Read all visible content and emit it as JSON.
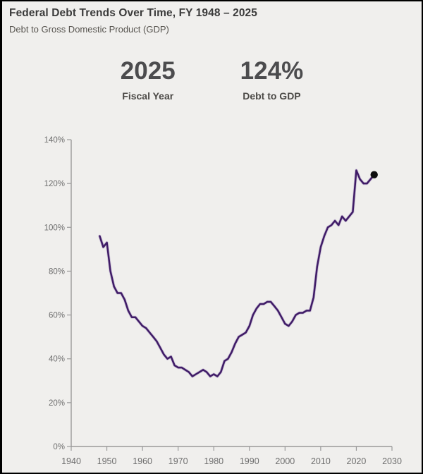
{
  "header": {
    "title": "Federal Debt Trends Over Time, FY 1948 – 2025",
    "subtitle": "Debt to Gross Domestic Product (GDP)"
  },
  "stats": [
    {
      "value": "2025",
      "label": "Fiscal Year"
    },
    {
      "value": "124%",
      "label": "Debt to GDP"
    }
  ],
  "chart_data": {
    "type": "line",
    "title": "Debt to Gross Domestic Product (GDP), FY 1948 - 2025",
    "xlabel": "",
    "ylabel": "",
    "xlim": [
      1940,
      2030
    ],
    "ylim": [
      0,
      140
    ],
    "x_ticks": [
      1940,
      1950,
      1960,
      1970,
      1980,
      1990,
      2000,
      2010,
      2020,
      2030
    ],
    "y_ticks": [
      0,
      20,
      40,
      60,
      80,
      100,
      120,
      140
    ],
    "y_tick_labels": [
      "0%",
      "20%",
      "40%",
      "60%",
      "80%",
      "100%",
      "120%",
      "140%"
    ],
    "x_tick_labels": [
      "1940",
      "1950",
      "1960",
      "1970",
      "1980",
      "1990",
      "2000",
      "2010",
      "2020",
      "2030"
    ],
    "grid": false,
    "legend": "none",
    "series": [
      {
        "name": "Debt to GDP (%)",
        "x": [
          1948,
          1949,
          1950,
          1951,
          1952,
          1953,
          1954,
          1955,
          1956,
          1957,
          1958,
          1959,
          1960,
          1961,
          1962,
          1963,
          1964,
          1965,
          1966,
          1967,
          1968,
          1969,
          1970,
          1971,
          1972,
          1973,
          1974,
          1975,
          1976,
          1977,
          1978,
          1979,
          1980,
          1981,
          1982,
          1983,
          1984,
          1985,
          1986,
          1987,
          1988,
          1989,
          1990,
          1991,
          1992,
          1993,
          1994,
          1995,
          1996,
          1997,
          1998,
          1999,
          2000,
          2001,
          2002,
          2003,
          2004,
          2005,
          2006,
          2007,
          2008,
          2009,
          2010,
          2011,
          2012,
          2013,
          2014,
          2015,
          2016,
          2017,
          2018,
          2019,
          2020,
          2021,
          2022,
          2023,
          2024,
          2025
        ],
        "values": [
          96,
          91,
          93,
          80,
          73,
          70,
          70,
          67,
          62,
          59,
          59,
          57,
          55,
          54,
          52,
          50,
          48,
          45,
          42,
          40,
          41,
          37,
          36,
          36,
          35,
          34,
          32,
          33,
          34,
          35,
          34,
          32,
          33,
          32,
          34,
          39,
          40,
          43,
          47,
          50,
          51,
          52,
          55,
          60,
          63,
          65,
          65,
          66,
          66,
          64,
          62,
          59,
          56,
          55,
          57,
          60,
          61,
          61,
          62,
          62,
          68,
          82,
          91,
          96,
          100,
          101,
          103,
          101,
          105,
          103,
          105,
          107,
          126,
          122,
          120,
          120,
          122,
          124
        ]
      }
    ],
    "endpoint": {
      "year": 2025,
      "value": 124
    },
    "colors": {
      "line": "#3f1b66",
      "line_halo": "#8a6fae",
      "endpoint_dot": "#0e0e0e",
      "axis": "#9a9a9a",
      "tick_label": "#6e6e6e",
      "background": "#f0efed"
    }
  }
}
